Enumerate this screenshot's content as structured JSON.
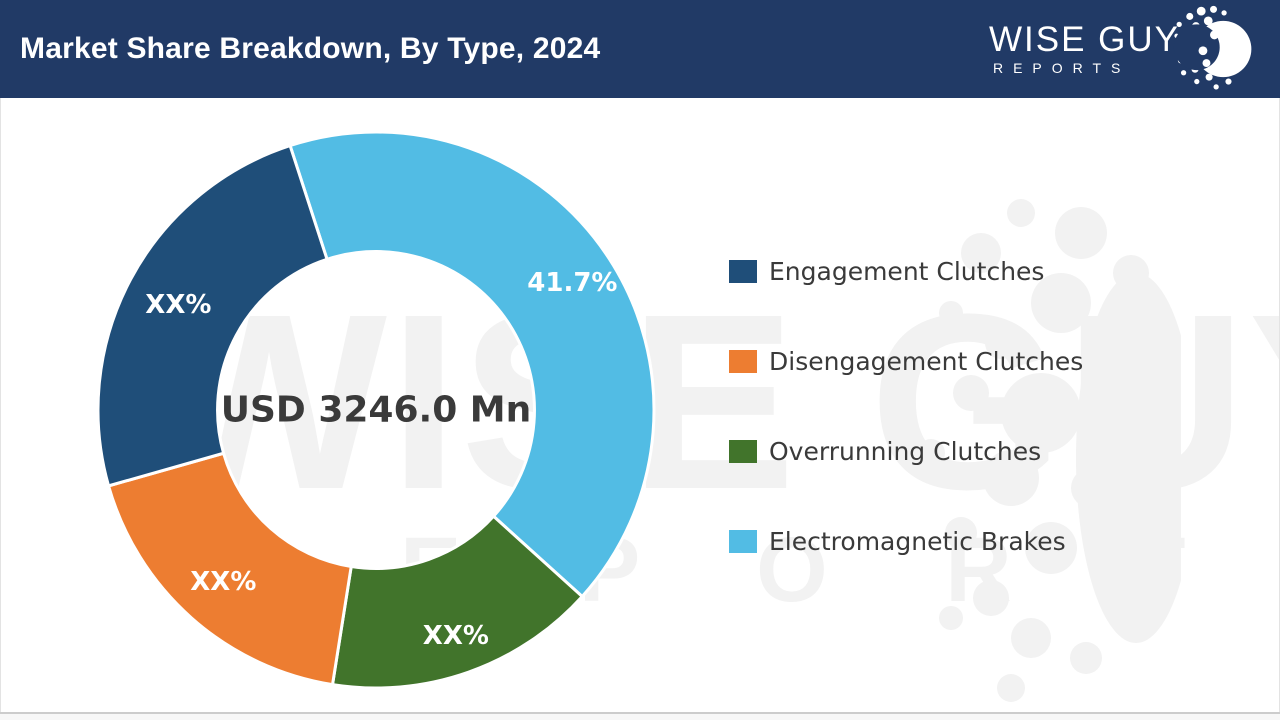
{
  "header": {
    "title": "Market Share Breakdown, By Type, 2024",
    "logo": {
      "line1": "WISE GUY",
      "line2": "REPORTS"
    }
  },
  "colors": {
    "header_bg": "#213A66",
    "text_dark": "#3A3A3A",
    "watermark_color": "#F2F2F2",
    "engagement_blue": "#1F4E79",
    "disengagement_orange": "#ED7D31",
    "overrunning_green": "#41742B",
    "electromagnetic_lightblue": "#52BCE4"
  },
  "watermark": {
    "line1": "WISE GUY",
    "line2": "R E P O R T S"
  },
  "legend": {
    "items": [
      {
        "label": "Engagement Clutches",
        "color": "#1F4E79"
      },
      {
        "label": "Disengagement Clutches",
        "color": "#ED7D31"
      },
      {
        "label": "Overrunning Clutches",
        "color": "#41742B"
      },
      {
        "label": "Electromagnetic Brakes",
        "color": "#52BCE4"
      }
    ]
  },
  "chart_data": {
    "type": "pie",
    "subtype": "donut",
    "title": "Market Share Breakdown, By Type, 2024",
    "center_label": "USD 3246.0 Mn",
    "legend_position": "right",
    "start_angle_deg": 108,
    "direction": "clockwise",
    "inner_radius_ratio": 0.57,
    "segments": [
      {
        "name": "Electromagnetic Brakes",
        "display_label": "41.7%",
        "value_pct": 41.7,
        "color": "#52BCE4",
        "label_radius": 234
      },
      {
        "name": "Overrunning Clutches",
        "display_label": "XX%",
        "value_pct": 15.8,
        "color": "#41742B",
        "label_radius": 240
      },
      {
        "name": "Disengagement Clutches",
        "display_label": "XX%",
        "value_pct": 18.1,
        "color": "#ED7D31",
        "label_radius": 230
      },
      {
        "name": "Engagement Clutches",
        "display_label": "XX%",
        "value_pct": 24.4,
        "color": "#1F4E79",
        "label_radius": 224
      }
    ]
  }
}
